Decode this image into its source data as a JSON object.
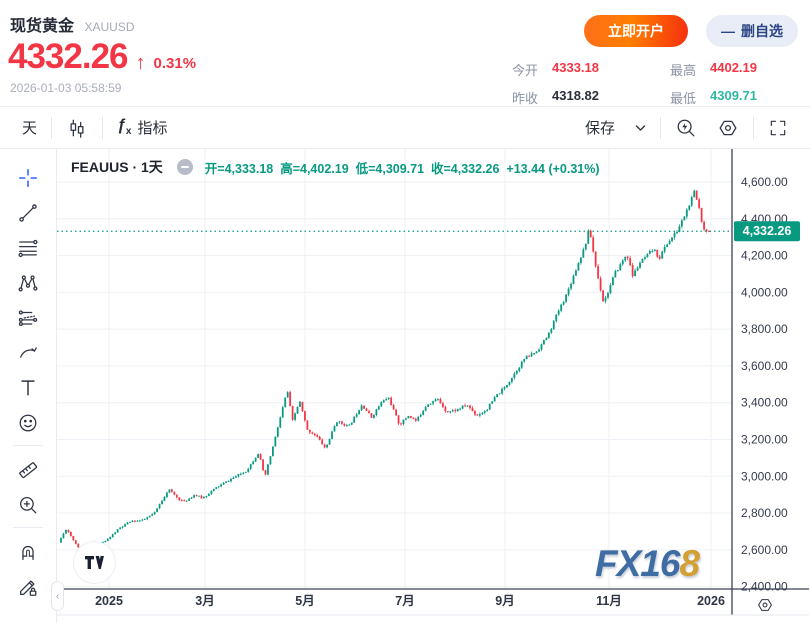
{
  "header": {
    "title": "现货黄金",
    "symbol": "XAUUSD",
    "price": "4332.26",
    "up_arrow": "↑",
    "change_pct": "0.31%",
    "timestamp": "2026-01-03 05:58:59",
    "open_account": "立即开户",
    "remove_minus": "—",
    "remove_label": "删自选",
    "stats": [
      {
        "label": "今开",
        "value": "4333.18",
        "color": "#f23645"
      },
      {
        "label": "最高",
        "value": "4402.19",
        "color": "#f23645"
      },
      {
        "label": "昨收",
        "value": "4318.82",
        "color": "#2b2f3a"
      },
      {
        "label": "最低",
        "value": "4309.71",
        "color": "#2fb9a0"
      }
    ]
  },
  "toolbar": {
    "interval": "天",
    "fx_f": "ƒ",
    "fx_sub": "x",
    "indicators": "指标",
    "save": "保存"
  },
  "sidebar": {
    "tools": [
      "cursor-crosshair",
      "trend-line",
      "fib-retracement",
      "xabcd-pattern",
      "forecast",
      "brush",
      "text",
      "emoji",
      "measure",
      "zoom-in",
      "magnet",
      "lock-drawings"
    ]
  },
  "legend": {
    "title": "FEAUUS · 1天",
    "ohlc": "开=4,333.18  高=4,402.19  低=4,309.71  收=4,332.26  +13.44 (+0.31%)"
  },
  "watermark": {
    "fx_blue": "FX16",
    "fx_gold": "8"
  },
  "chart_data": {
    "type": "candlestick",
    "title": "FEAUUS 1天 (现货黄金 XAUUSD 日线)",
    "symbol": "FEAUUS",
    "interval": "1天",
    "ohlc": {
      "open": 4333.18,
      "high": 4402.19,
      "low": 4309.71,
      "close": 4332.26,
      "change": 13.44,
      "change_pct": 0.31
    },
    "prev_close": 4318.82,
    "current_price": 4332.26,
    "current_price_label": "4,332.26",
    "y_axis": {
      "min": 2400,
      "max": 4600,
      "step": 200
    },
    "x_axis": [
      "2025",
      "3月",
      "5月",
      "7月",
      "9月",
      "11月",
      "2026"
    ],
    "grid": true,
    "legend_position": "top-left",
    "candle_count": 264,
    "colors": {
      "up": "#089981",
      "down": "#f23645",
      "price_line": "#089981",
      "grid": "#eef0f5",
      "axis_line": "#3a4156",
      "axis_text": "#363c4e"
    },
    "price_path_anchors": [
      [
        0.0,
        2640
      ],
      [
        0.012,
        2715
      ],
      [
        0.029,
        2620
      ],
      [
        0.042,
        2590
      ],
      [
        0.06,
        2630
      ],
      [
        0.074,
        2650
      ],
      [
        0.093,
        2715
      ],
      [
        0.111,
        2755
      ],
      [
        0.13,
        2760
      ],
      [
        0.148,
        2800
      ],
      [
        0.17,
        2930
      ],
      [
        0.184,
        2880
      ],
      [
        0.194,
        2860
      ],
      [
        0.21,
        2900
      ],
      [
        0.222,
        2880
      ],
      [
        0.244,
        2940
      ],
      [
        0.269,
        2990
      ],
      [
        0.29,
        3030
      ],
      [
        0.309,
        3130
      ],
      [
        0.318,
        2990
      ],
      [
        0.333,
        3190
      ],
      [
        0.353,
        3470
      ],
      [
        0.361,
        3300
      ],
      [
        0.372,
        3410
      ],
      [
        0.384,
        3250
      ],
      [
        0.398,
        3220
      ],
      [
        0.412,
        3150
      ],
      [
        0.429,
        3300
      ],
      [
        0.448,
        3270
      ],
      [
        0.468,
        3390
      ],
      [
        0.483,
        3320
      ],
      [
        0.498,
        3400
      ],
      [
        0.509,
        3430
      ],
      [
        0.526,
        3280
      ],
      [
        0.54,
        3330
      ],
      [
        0.552,
        3300
      ],
      [
        0.568,
        3390
      ],
      [
        0.585,
        3420
      ],
      [
        0.599,
        3350
      ],
      [
        0.614,
        3360
      ],
      [
        0.63,
        3390
      ],
      [
        0.645,
        3330
      ],
      [
        0.66,
        3360
      ],
      [
        0.676,
        3440
      ],
      [
        0.688,
        3480
      ],
      [
        0.7,
        3540
      ],
      [
        0.719,
        3640
      ],
      [
        0.738,
        3680
      ],
      [
        0.756,
        3770
      ],
      [
        0.769,
        3880
      ],
      [
        0.784,
        3990
      ],
      [
        0.799,
        4130
      ],
      [
        0.813,
        4260
      ],
      [
        0.819,
        4350
      ],
      [
        0.83,
        4120
      ],
      [
        0.841,
        3945
      ],
      [
        0.849,
        4010
      ],
      [
        0.858,
        4100
      ],
      [
        0.867,
        4150
      ],
      [
        0.877,
        4210
      ],
      [
        0.886,
        4090
      ],
      [
        0.897,
        4160
      ],
      [
        0.907,
        4195
      ],
      [
        0.918,
        4235
      ],
      [
        0.927,
        4185
      ],
      [
        0.937,
        4255
      ],
      [
        0.946,
        4295
      ],
      [
        0.955,
        4335
      ],
      [
        0.965,
        4410
      ],
      [
        0.974,
        4480
      ],
      [
        0.981,
        4545
      ],
      [
        0.988,
        4470
      ],
      [
        0.994,
        4360
      ],
      [
        1.0,
        4332
      ]
    ]
  }
}
